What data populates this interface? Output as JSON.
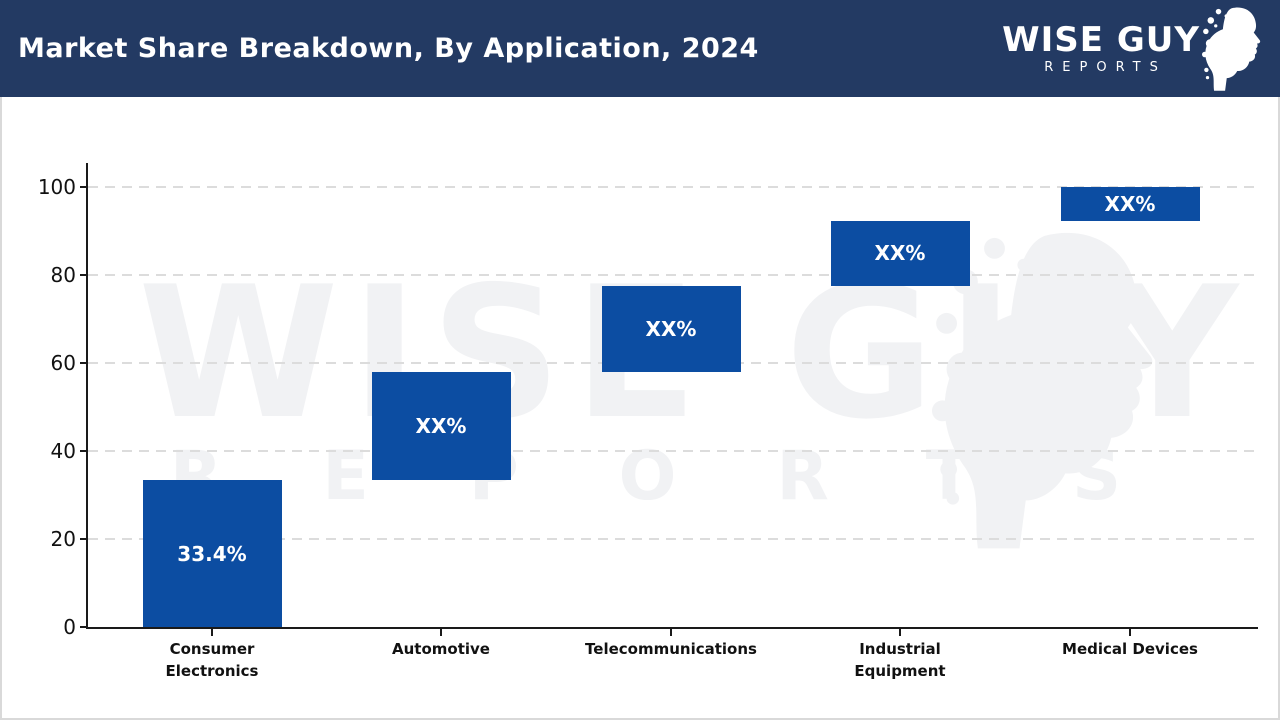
{
  "header": {
    "title": "Market Share Breakdown, By Application, 2024",
    "logo": {
      "primary": "WISE GUY",
      "secondary": "REPORTS"
    }
  },
  "watermark": {
    "primary": "WISE GUY",
    "secondary": "REPORTS"
  },
  "colors": {
    "header_bg": "#233A63",
    "header_text": "#FFFFFF",
    "bar": "#0C4DA2",
    "bar_label": "#FFFFFF",
    "grid": "#DCDCDC",
    "axis": "#1A1A1A",
    "watermark": "#F1F2F4",
    "frame": "#D9D9D9"
  },
  "chart_data": {
    "type": "bar",
    "variant": "waterfall",
    "title": "Market Share Breakdown, By Application, 2024",
    "xlabel": "",
    "ylabel": "",
    "categories": [
      "Consumer\nElectronics",
      "Automotive",
      "Telecommunications",
      "Industrial\nEquipment",
      "Medical Devices"
    ],
    "segments": [
      {
        "category": "Consumer Electronics",
        "start": 0,
        "end": 33.4,
        "label": "33.4%"
      },
      {
        "category": "Automotive",
        "start": 33.4,
        "end": 58,
        "label": "XX%"
      },
      {
        "category": "Telecommunications",
        "start": 58,
        "end": 77.5,
        "label": "XX%"
      },
      {
        "category": "Industrial Equipment",
        "start": 77.5,
        "end": 92.3,
        "label": "XX%"
      },
      {
        "category": "Medical Devices",
        "start": 92.3,
        "end": 100,
        "label": "XX%"
      }
    ],
    "ylim": [
      0,
      105
    ],
    "yticks": [
      0,
      20,
      40,
      60,
      80,
      100
    ],
    "grid": "dashed-horizontal",
    "legend": false
  }
}
